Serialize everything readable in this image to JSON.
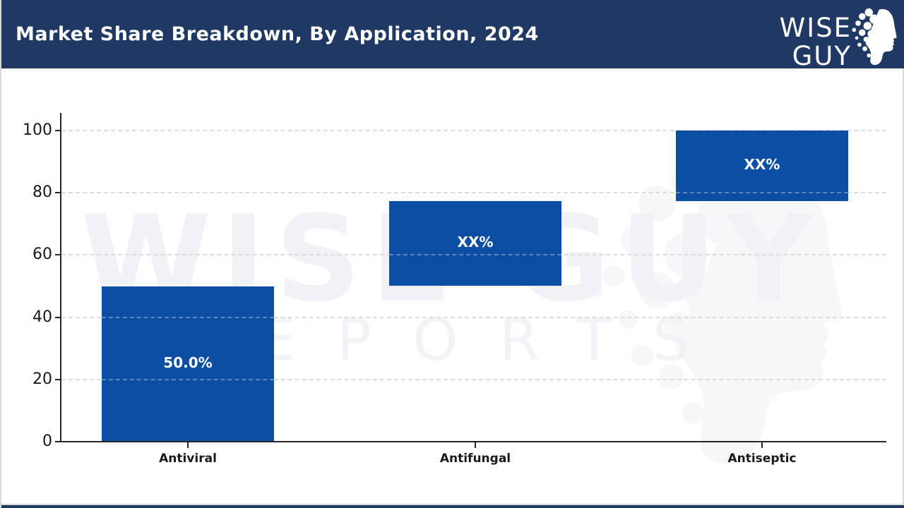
{
  "header": {
    "title": "Market Share Breakdown, By Application, 2024",
    "bg_color": "#1f3864",
    "logo": {
      "line1": "WISE GUY",
      "line2": "REPORTS"
    }
  },
  "watermark": {
    "line1": "WISE GUY",
    "line2": "REPORTS"
  },
  "chart_data": {
    "type": "bar",
    "subtype": "waterfall",
    "title": "Market Share Breakdown, By Application, 2024",
    "categories": [
      "Antiviral",
      "Antifungal",
      "Antiseptic"
    ],
    "segments": [
      {
        "category": "Antiviral",
        "start": 0,
        "end": 50,
        "label": "50.0%"
      },
      {
        "category": "Antifungal",
        "start": 50,
        "end": 77.3,
        "label": "XX%"
      },
      {
        "category": "Antiseptic",
        "start": 77.3,
        "end": 100,
        "label": "XX%"
      }
    ],
    "y_ticks": [
      0,
      20,
      40,
      60,
      80,
      100
    ],
    "ylim": [
      0,
      105
    ],
    "xlabel": "",
    "ylabel": "",
    "grid": "dashed-horizontal",
    "legend": "none",
    "bar_color": "#0c4ea4",
    "bar_label_color": "#ffffff",
    "axis_color": "#262626",
    "gridline_color": "#dcdcdc"
  }
}
